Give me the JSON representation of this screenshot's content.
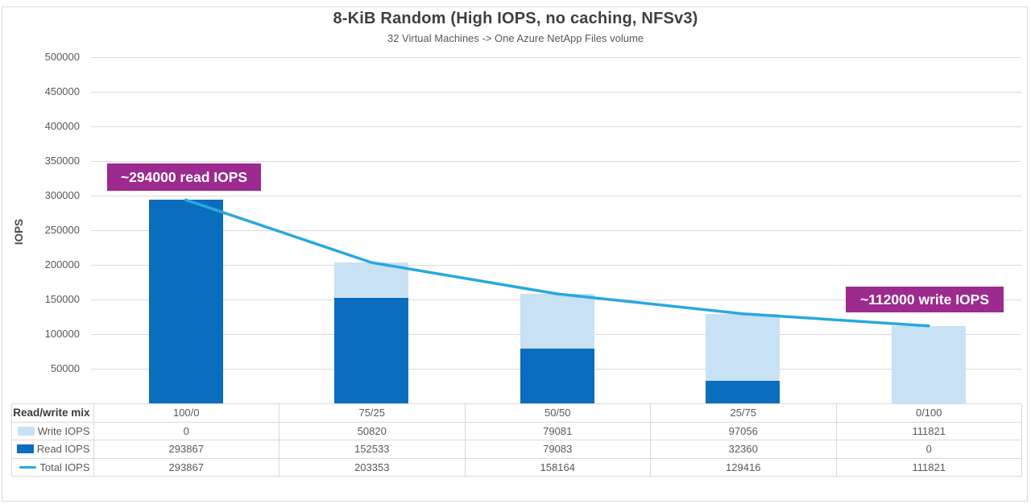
{
  "chart": {
    "title": "8-KiB Random (High IOPS, no caching, NFSv3)",
    "subtitle": "32 Virtual Machines -> One Azure NetApp Files volume",
    "y_axis_title": "IOPS"
  },
  "chart_data": {
    "type": "bar",
    "subtype": "stacked-bars-with-line-overlay",
    "title": "8-KiB Random (High IOPS, no caching, NFSv3)",
    "subtitle": "32 Virtual Machines -> One Azure NetApp Files volume",
    "xlabel": "Read/write mix",
    "ylabel": "IOPS",
    "categories": [
      "100/0",
      "75/25",
      "50/50",
      "25/75",
      "0/100"
    ],
    "series": [
      {
        "name": "Write IOPS",
        "type": "bar",
        "color": "#c8e1f4",
        "values": [
          0,
          50820,
          79081,
          97056,
          111821
        ]
      },
      {
        "name": "Read IOPS",
        "type": "bar",
        "color": "#0b6dbd",
        "values": [
          293867,
          152533,
          79083,
          32360,
          0
        ]
      },
      {
        "name": "Total IOPS",
        "type": "line",
        "color": "#29a8e0",
        "values": [
          293867,
          203353,
          158164,
          129416,
          111821
        ]
      }
    ],
    "ylim": [
      0,
      500000
    ],
    "ytick_step": 50000,
    "ytick_labels": [
      "50000",
      "100000",
      "150000",
      "200000",
      "250000",
      "300000",
      "350000",
      "400000",
      "450000",
      "500000"
    ],
    "grid": true,
    "legend_position": "data-table"
  },
  "annotations": [
    {
      "text": "~294000 read IOPS",
      "background": "#9c2a8f",
      "target": "first stacked bar (100/0)"
    },
    {
      "text": "~112000 write IOPS",
      "background": "#9c2a8f",
      "target": "last stacked bar (0/100)"
    }
  ],
  "table": {
    "row_header": "Read/write mix",
    "columns": [
      "100/0",
      "75/25",
      "50/50",
      "25/75",
      "0/100"
    ],
    "rows": [
      {
        "label": "Write IOPS",
        "values": [
          "0",
          "50820",
          "79081",
          "97056",
          "111821"
        ]
      },
      {
        "label": "Read IOPS",
        "values": [
          "293867",
          "152533",
          "79083",
          "32360",
          "0"
        ]
      },
      {
        "label": "Total IOPS",
        "values": [
          "293867",
          "203353",
          "158164",
          "129416",
          "111821"
        ]
      }
    ]
  },
  "colors": {
    "write_bar": "#c8e1f4",
    "read_bar": "#0b6dbd",
    "total_line": "#29a8e0",
    "annotation_bg": "#9c2a8f",
    "gridline": "#dadada",
    "axis_text": "#595959"
  }
}
